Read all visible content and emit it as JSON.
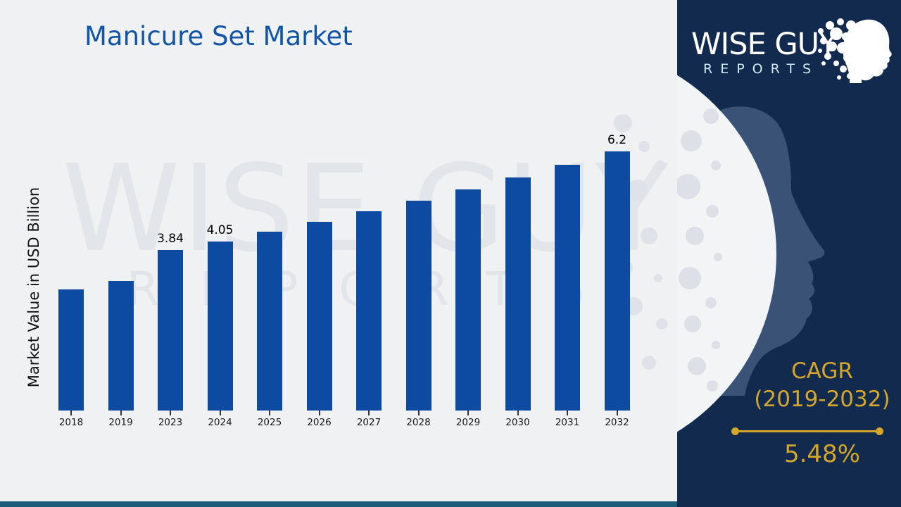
{
  "page": {
    "title": "Manicure Set Market"
  },
  "watermark": {
    "line1": "WISE GUY",
    "line2": "REPORTS"
  },
  "logo": {
    "name": "WISE GUY",
    "sub": "REPORTS"
  },
  "cagr": {
    "label": "CAGR",
    "range": "(2019-2032)",
    "value": "5.48%"
  },
  "chart_data": {
    "type": "bar",
    "title": "Manicure Set Market",
    "xlabel": "",
    "ylabel": "Market Value in USD Billion",
    "categories": [
      "2018",
      "2019",
      "2023",
      "2024",
      "2025",
      "2026",
      "2027",
      "2028",
      "2029",
      "2030",
      "2031",
      "2032"
    ],
    "values": [
      2.9,
      3.1,
      3.84,
      4.05,
      4.28,
      4.51,
      4.77,
      5.02,
      5.29,
      5.58,
      5.88,
      6.2
    ],
    "bar_labels": [
      "",
      "",
      "3.84",
      "4.05",
      "",
      "",
      "",
      "",
      "",
      "",
      "",
      "6.2"
    ],
    "ylim": [
      0,
      7
    ],
    "grid": false,
    "legend": "none",
    "bar_color": "#0d4aa1"
  },
  "colors": {
    "background": "#eff1f2",
    "title": "#1254a5",
    "bar": "#0d4aa1",
    "panel_navy": "#132a4f",
    "gold": "#d4a62a",
    "bottom_strip_teal": "#1d5c78",
    "watermark_gray": "#e2e5ea",
    "face_silhouette": "#3b5277"
  }
}
